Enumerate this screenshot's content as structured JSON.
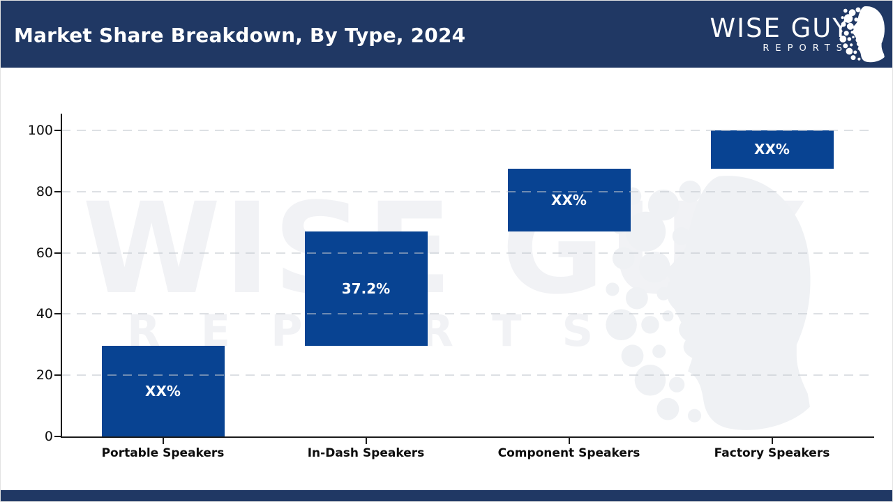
{
  "header": {
    "title": "Market Share Breakdown, By Type, 2024",
    "logo": {
      "line1": "WISE GUY",
      "line2": "REPORTS"
    }
  },
  "watermark": {
    "line1": "WISE GUY",
    "line2": "REPORTS"
  },
  "chart_data": {
    "type": "bar",
    "subtype": "floating-waterfall",
    "title": "Market Share Breakdown, By Type, 2024",
    "categories": [
      "Portable Speakers",
      "In-Dash Speakers",
      "Component Speakers",
      "Factory Speakers"
    ],
    "series": [
      {
        "name": "Market Share (%)",
        "segments": [
          {
            "category": "Portable Speakers",
            "start": 0,
            "end": 29.7,
            "value": 29.7,
            "label": "XX%"
          },
          {
            "category": "In-Dash Speakers",
            "start": 29.7,
            "end": 66.9,
            "value": 37.2,
            "label": "37.2%"
          },
          {
            "category": "Component Speakers",
            "start": 66.9,
            "end": 87.5,
            "value": 20.6,
            "label": "XX%"
          },
          {
            "category": "Factory Speakers",
            "start": 87.5,
            "end": 100,
            "value": 12.5,
            "label": "XX%"
          }
        ]
      }
    ],
    "yticks": [
      0,
      20,
      40,
      60,
      80,
      100
    ],
    "ylim": [
      0,
      105
    ],
    "grid": "horizontal-dashed",
    "legend": "none",
    "bar_color": "#084392",
    "bar_label_color": "#ffffff",
    "axis_color": "#1a1a1a"
  },
  "colors": {
    "header_bg": "#203864",
    "footer_bg": "#203864",
    "watermark": "#f1f2f5"
  }
}
